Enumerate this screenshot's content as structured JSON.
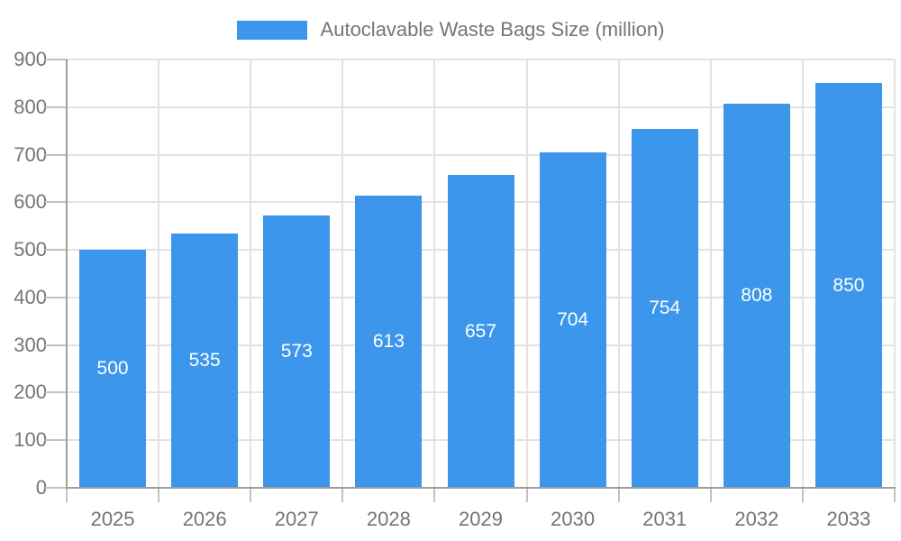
{
  "chart_data": {
    "type": "bar",
    "title": "",
    "xlabel": "",
    "ylabel": "",
    "series_name": "Autoclavable Waste Bags Size (million)",
    "categories": [
      "2025",
      "2026",
      "2027",
      "2028",
      "2029",
      "2030",
      "2031",
      "2032",
      "2033"
    ],
    "values": [
      500,
      535,
      573,
      613,
      657,
      704,
      754,
      808,
      850
    ],
    "bar_labels": [
      "500",
      "535",
      "573",
      "613",
      "657",
      "704",
      "754",
      "808",
      "850"
    ],
    "ylim": [
      0,
      900
    ],
    "yticks": [
      0,
      100,
      200,
      300,
      400,
      500,
      600,
      700,
      800,
      900
    ],
    "grid": "horizontal lines at each y tick and vertical lines at category boundaries",
    "legend_position": "top-center",
    "bar_label_position": "inside-center"
  },
  "legend": {
    "label": "Autoclavable Waste Bags Size (million)"
  },
  "colors": {
    "bar": "#3B96EC",
    "bar_label_text": "#ffffff",
    "axis_text": "#757575",
    "legend_text": "#757575",
    "gridline": "#e3e3e3",
    "axis_line": "#9e9e9e",
    "tick": "#c2c2c2",
    "background": "#ffffff"
  }
}
